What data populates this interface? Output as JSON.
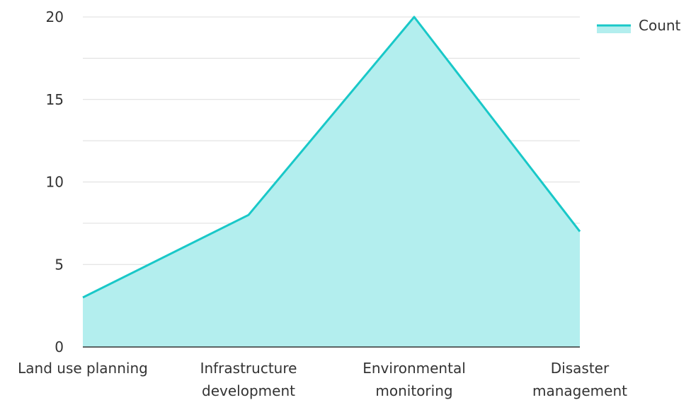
{
  "chart_data": {
    "type": "area",
    "categories": [
      [
        "Land use planning"
      ],
      [
        "Infrastructure",
        "development"
      ],
      [
        "Environmental",
        "monitoring"
      ],
      [
        "Disaster",
        "management"
      ]
    ],
    "series": [
      {
        "name": "Count",
        "values": [
          3,
          8,
          20,
          7
        ]
      }
    ],
    "ylim": [
      0,
      20
    ],
    "yticks": [
      0,
      5,
      10,
      15,
      20
    ],
    "grid": true,
    "legend_position": "top-right",
    "colors": {
      "line": "#19c8c8",
      "fill": "#b3eeee",
      "grid": "#dddddd",
      "axis": "#333333"
    }
  }
}
